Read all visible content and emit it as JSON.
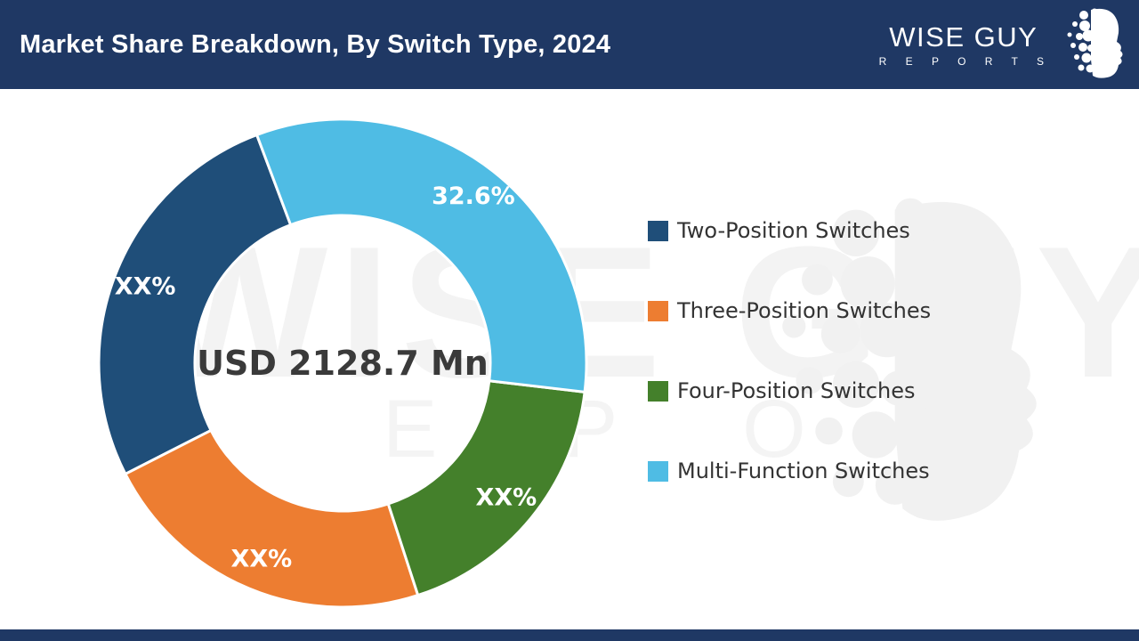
{
  "header": {
    "title": "Market Share Breakdown, By Switch Type, 2024",
    "bg_color": "#1F3864",
    "logo": {
      "line1": "WISE GUY",
      "line2": "R E P O R T S"
    }
  },
  "watermark": {
    "line1": "WISE GUY",
    "line2": "E P O"
  },
  "chart_data": {
    "type": "pie",
    "donut": true,
    "title": "Market Share Breakdown, By Switch Type, 2024",
    "center_label": "USD 2128.7 Mn",
    "legend_position": "right",
    "series": [
      {
        "name": "Two-Position Switches",
        "label": "XX%",
        "estimated_share_pct": 26.8,
        "color": "#1F4E79",
        "start_angle": 243.0,
        "end_angle": 339.4
      },
      {
        "name": "Three-Position Switches",
        "label": "XX%",
        "estimated_share_pct": 22.5,
        "color": "#ED7D31",
        "start_angle": 162.0,
        "end_angle": 243.0
      },
      {
        "name": "Four-Position Switches",
        "label": "XX%",
        "estimated_share_pct": 18.1,
        "color": "#44802B",
        "start_angle": 96.8,
        "end_angle": 162.0
      },
      {
        "name": "Multi-Function Switches",
        "label": "32.6%",
        "estimated_share_pct": 32.6,
        "color": "#4FBCE4",
        "start_angle": -20.6,
        "end_angle": 96.8
      }
    ]
  },
  "footer": {
    "bg_color": "#1F3864"
  }
}
